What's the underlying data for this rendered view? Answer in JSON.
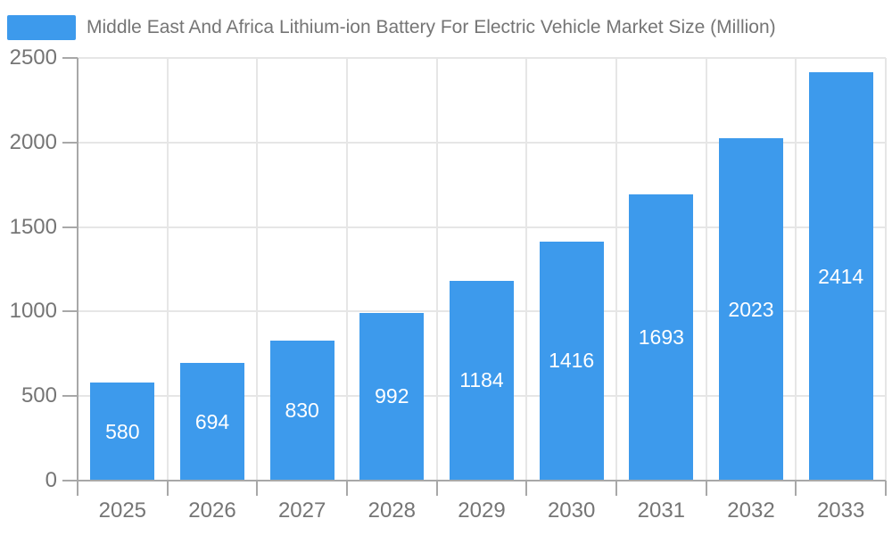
{
  "chart_data": {
    "type": "bar",
    "title": "Middle East And Africa Lithium-ion Battery For Electric Vehicle Market Size (Million)",
    "categories": [
      "2025",
      "2026",
      "2027",
      "2028",
      "2029",
      "2030",
      "2031",
      "2032",
      "2033"
    ],
    "values": [
      580,
      694,
      830,
      992,
      1184,
      1416,
      1693,
      2023,
      2414
    ],
    "xlabel": "",
    "ylabel": "",
    "ylim": [
      0,
      2500
    ],
    "yticks": [
      0,
      500,
      1000,
      1500,
      2000,
      2500
    ],
    "grid": true,
    "legend_position": "top-left",
    "value_labels": "inside-center",
    "bar_color": "#3d9aec",
    "value_label_color": "#ffffff",
    "axis_label_color": "#757575",
    "axis_line_color": "#a8a8a8",
    "gridline_color": "#e6e6e6",
    "background_color": "#ffffff"
  }
}
